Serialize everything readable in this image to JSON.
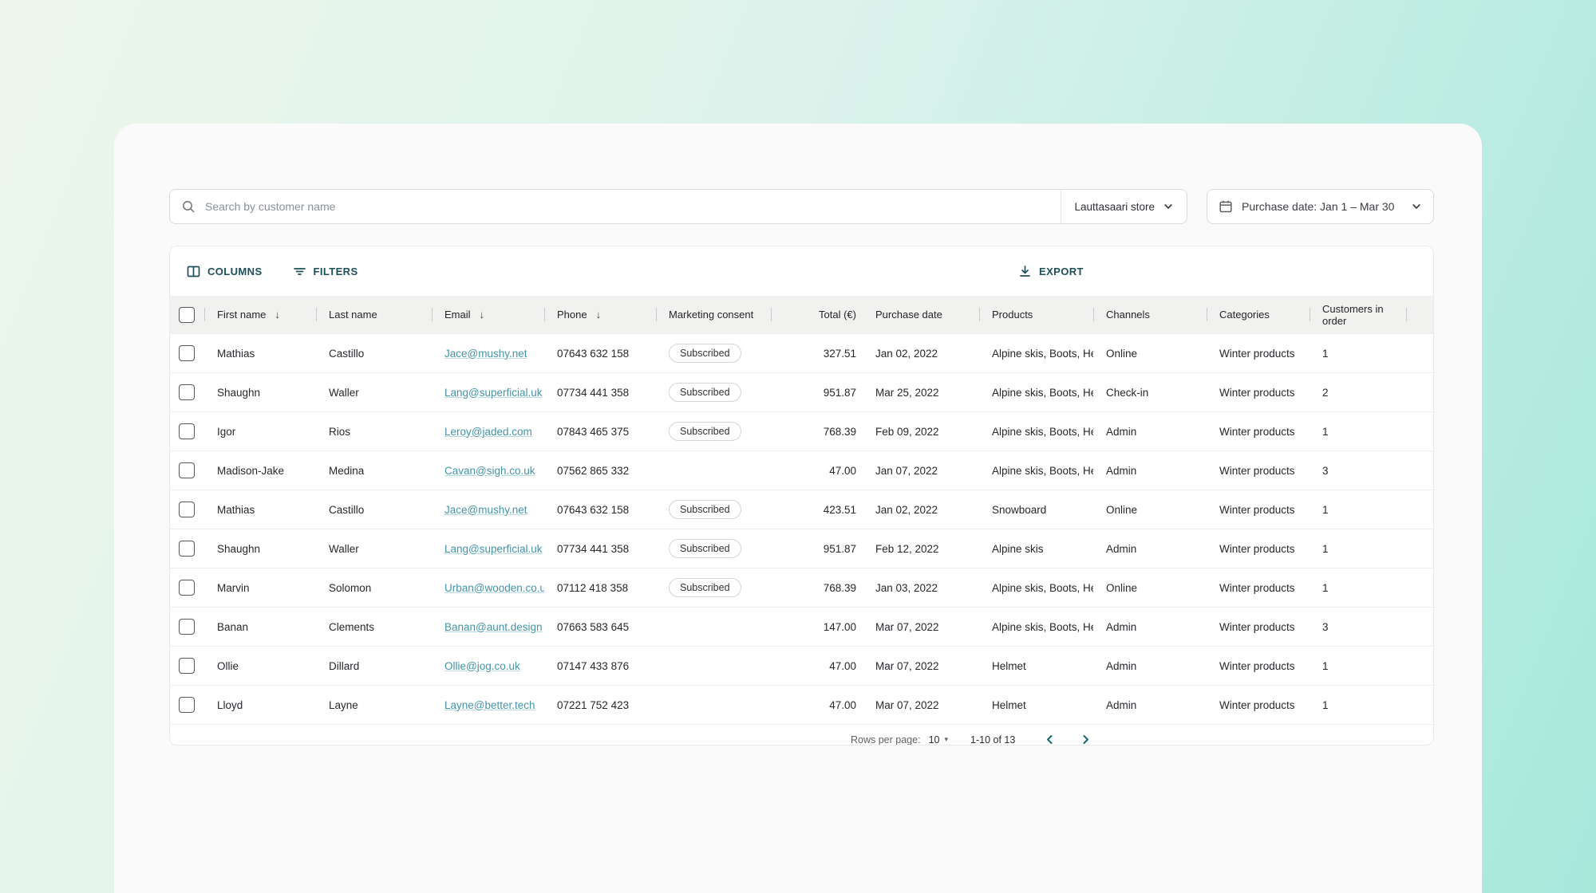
{
  "colors": {
    "accent": "#1d505b",
    "link": "#4594a6",
    "pagination_arrow": "#14696e",
    "card": "#fafafa"
  },
  "search": {
    "placeholder": "Search by customer name",
    "store_label": "Lauttasaari store"
  },
  "date_filter": {
    "label": "Purchase date: Jan 1 – Mar 30"
  },
  "toolbar": {
    "columns_label": "COLUMNS",
    "filters_label": "FILTERS",
    "export_label": "EXPORT"
  },
  "table": {
    "columns": [
      {
        "label": "",
        "type": "checkbox"
      },
      {
        "label": "First name",
        "sort": true
      },
      {
        "label": "Last name"
      },
      {
        "label": "Email",
        "sort": true
      },
      {
        "label": "Phone",
        "sort": true
      },
      {
        "label": "Marketing consent"
      },
      {
        "label": "Total (€)",
        "align": "right"
      },
      {
        "label": "Purchase date",
        "no_divider": true
      },
      {
        "label": "Products"
      },
      {
        "label": "Channels"
      },
      {
        "label": "Categories"
      },
      {
        "label": "Customers in order"
      }
    ],
    "consent_label": "Subscribed",
    "rows": [
      {
        "first_name": "Mathias",
        "last_name": "Castillo",
        "email": "Jace@mushy.net",
        "phone": "07643 632 158",
        "consent": true,
        "total": "327.51",
        "purchase_date": "Jan 02, 2022",
        "products": "Alpine skis, Boots, He..",
        "channel": "Online",
        "category": "Winter products",
        "customers": "1"
      },
      {
        "first_name": "Shaughn",
        "last_name": "Waller",
        "email": "Lang@superficial.uk",
        "phone": "07734 441 358",
        "consent": true,
        "total": "951.87",
        "purchase_date": "Mar 25, 2022",
        "products": "Alpine skis, Boots, He..",
        "channel": "Check-in",
        "category": "Winter products",
        "customers": "2"
      },
      {
        "first_name": "Igor",
        "last_name": "Rios",
        "email": "Leroy@jaded.com",
        "phone": "07843 465 375",
        "consent": true,
        "total": "768.39",
        "purchase_date": "Feb 09, 2022",
        "products": "Alpine skis, Boots, He..",
        "channel": "Admin",
        "category": "Winter products",
        "customers": "1"
      },
      {
        "first_name": "Madison-Jake",
        "last_name": "Medina",
        "email": "Cavan@sigh.co.uk",
        "phone": "07562 865 332",
        "consent": false,
        "total": "47.00",
        "purchase_date": "Jan 07, 2022",
        "products": "Alpine skis, Boots, He..",
        "channel": "Admin",
        "category": "Winter products",
        "customers": "3"
      },
      {
        "first_name": "Mathias",
        "last_name": "Castillo",
        "email": "Jace@mushy.net",
        "phone": "07643 632 158",
        "consent": true,
        "total": "423.51",
        "purchase_date": "Jan 02, 2022",
        "products": "Snowboard",
        "channel": "Online",
        "category": "Winter products",
        "customers": "1"
      },
      {
        "first_name": "Shaughn",
        "last_name": "Waller",
        "email": "Lang@superficial.uk",
        "phone": "07734 441 358",
        "consent": true,
        "total": "951.87",
        "purchase_date": "Feb 12, 2022",
        "products": "Alpine skis",
        "channel": "Admin",
        "category": "Winter products",
        "customers": "1"
      },
      {
        "first_name": "Marvin",
        "last_name": "Solomon",
        "email": "Urban@wooden.co.uk",
        "phone": "07112 418 358",
        "consent": true,
        "total": "768.39",
        "purchase_date": "Jan 03, 2022",
        "products": "Alpine skis, Boots, He..",
        "channel": "Online",
        "category": "Winter products",
        "customers": "1"
      },
      {
        "first_name": "Banan",
        "last_name": "Clements",
        "email": "Banan@aunt.design",
        "phone": "07663 583 645",
        "consent": false,
        "total": "147.00",
        "purchase_date": "Mar 07, 2022",
        "products": "Alpine skis, Boots, He..",
        "channel": "Admin",
        "category": "Winter products",
        "customers": "3"
      },
      {
        "first_name": "Ollie",
        "last_name": "Dillard",
        "email": "Ollie@jog.co.uk",
        "phone": "07147 433 876",
        "consent": false,
        "total": "47.00",
        "purchase_date": "Mar 07, 2022",
        "products": "Helmet",
        "channel": "Admin",
        "category": "Winter products",
        "customers": "1"
      },
      {
        "first_name": "Lloyd",
        "last_name": "Layne",
        "email": "Layne@better.tech",
        "phone": "07221 752 423",
        "consent": false,
        "total": "47.00",
        "purchase_date": "Mar 07, 2022",
        "products": "Helmet",
        "channel": "Admin",
        "category": "Winter products",
        "customers": "1"
      }
    ]
  },
  "pagination": {
    "rows_per_page_label": "Rows per page:",
    "rows_per_page_value": "10",
    "range_label": "1-10 of 13"
  }
}
